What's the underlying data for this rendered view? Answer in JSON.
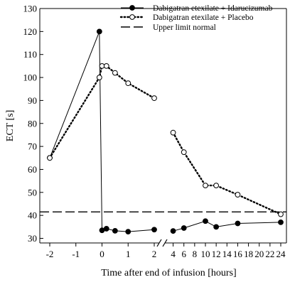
{
  "chart_data": {
    "type": "line",
    "xlabel": "Time after end of infusion [hours]",
    "ylabel": "ECT [s]",
    "ylim": [
      28,
      130
    ],
    "y_ticks": [
      30,
      40,
      50,
      60,
      70,
      80,
      90,
      100,
      110,
      120,
      130
    ],
    "x_segments": [
      {
        "from": -2,
        "to": 2,
        "ticks": [
          -2,
          -1,
          0,
          1,
          2
        ]
      },
      {
        "from": 3,
        "to": 24,
        "ticks": [
          4,
          6,
          8,
          10,
          12,
          14,
          16,
          18,
          20,
          22,
          24
        ]
      }
    ],
    "axis_break": "between 2 and 4",
    "legend_position": "top-right",
    "grid": false,
    "series": [
      {
        "name": "Dabigatran etexilate + Idarucizumab",
        "marker": "filled-circle",
        "line": "solid",
        "points": [
          {
            "x": -2,
            "y": 65
          },
          {
            "x": -0.1,
            "y": 120
          },
          {
            "x": 0,
            "y": 33.5
          },
          {
            "x": 0.17,
            "y": 34.2
          },
          {
            "x": 0.5,
            "y": 33.3
          },
          {
            "x": 1,
            "y": 32.9
          },
          {
            "x": 2,
            "y": 33.8
          },
          {
            "x": 4,
            "y": 33.2
          },
          {
            "x": 6,
            "y": 34.5
          },
          {
            "x": 10,
            "y": 37.5
          },
          {
            "x": 12,
            "y": 35
          },
          {
            "x": 16,
            "y": 36.5
          },
          {
            "x": 24,
            "y": 37
          }
        ]
      },
      {
        "name": "Dabigatran etexilate + Placebo",
        "marker": "open-circle",
        "line": "dotted",
        "points": [
          {
            "x": -2,
            "y": 65
          },
          {
            "x": -0.1,
            "y": 100
          },
          {
            "x": 0,
            "y": 105
          },
          {
            "x": 0.17,
            "y": 105
          },
          {
            "x": 0.5,
            "y": 102
          },
          {
            "x": 1,
            "y": 97.5
          },
          {
            "x": 2,
            "y": 91
          },
          {
            "x": 4,
            "y": 76
          },
          {
            "x": 6,
            "y": 67.5
          },
          {
            "x": 10,
            "y": 53
          },
          {
            "x": 12,
            "y": 53
          },
          {
            "x": 16,
            "y": 49
          },
          {
            "x": 24,
            "y": 40.5
          }
        ]
      }
    ],
    "reference_lines": [
      {
        "name": "Upper limit normal",
        "y": 41.5,
        "line": "dashed"
      }
    ]
  }
}
